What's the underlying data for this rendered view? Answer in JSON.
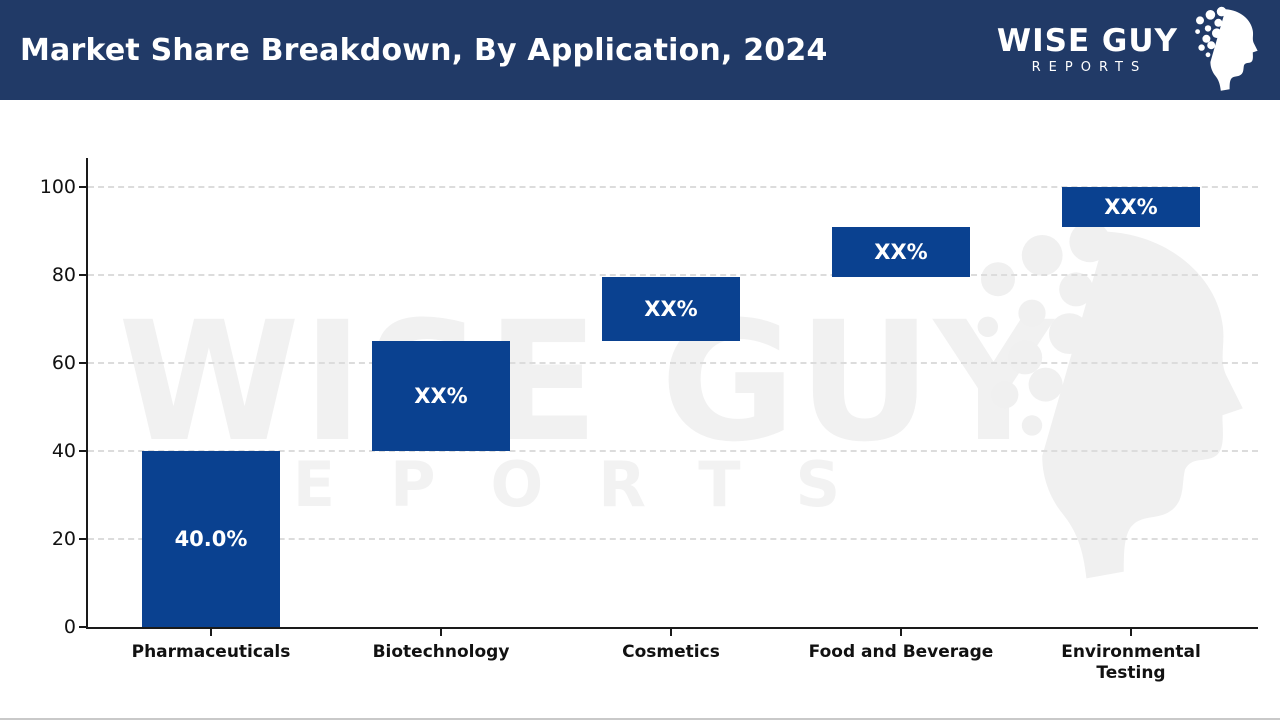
{
  "header": {
    "title": "Market Share Breakdown, By Application, 2024",
    "logo": {
      "line1": "WISE GUY",
      "line2": "REPORTS"
    }
  },
  "watermark": {
    "line1": "WISE GUY",
    "line2": "REPORTS"
  },
  "colors": {
    "header_bg": "#213a67",
    "bar": "#0a4190",
    "bar_label": "#ffffff",
    "gridline": "#dcdcdc",
    "axis": "#1a1a1a",
    "watermark": "#f1f1f1"
  },
  "chart_data": {
    "type": "bar",
    "subtype": "waterfall",
    "title": "Market Share Breakdown, By Application, 2024",
    "categories": [
      "Pharmaceuticals",
      "Biotechnology",
      "Cosmetics",
      "Food and Beverage",
      "Environmental\nTesting"
    ],
    "segments": [
      {
        "category": "Pharmaceuticals",
        "start": 0,
        "end": 40,
        "label": "40.0%"
      },
      {
        "category": "Biotechnology",
        "start": 40,
        "end": 65,
        "label": "XX%"
      },
      {
        "category": "Cosmetics",
        "start": 65,
        "end": 79.5,
        "label": "XX%"
      },
      {
        "category": "Food and Beverage",
        "start": 79.5,
        "end": 91,
        "label": "XX%"
      },
      {
        "category": "Environmental Testing",
        "start": 91,
        "end": 100,
        "label": "XX%"
      }
    ],
    "y_ticks": [
      0,
      20,
      40,
      60,
      80,
      100
    ],
    "ylim": [
      0,
      105
    ],
    "xlabel": "",
    "ylabel": "",
    "grid": "horizontal-dashed",
    "legend": "none",
    "bar_value_position": "inside-center"
  }
}
